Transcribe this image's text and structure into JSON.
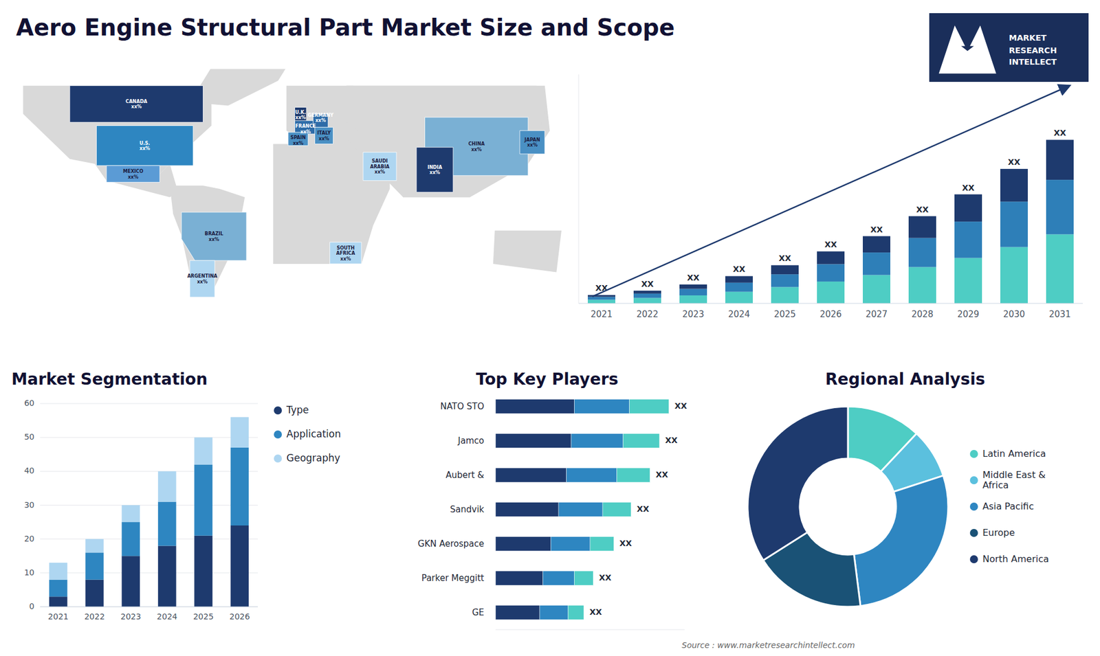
{
  "title": "Aero Engine Structural Part Market Size and Scope",
  "source": "Source : www.marketresearchintellect.com",
  "logo_text": [
    "MARKET",
    "RESEARCH",
    "INTELLECT"
  ],
  "chart_data": [
    {
      "type": "map",
      "xlim": [
        -175,
        155
      ],
      "ylim": [
        -62,
        82
      ],
      "tick_labels": false,
      "land": {
        "color": "#d9d9d9",
        "polygons": [
          [
            [
              -168,
              72
            ],
            [
              -55,
              72
            ],
            [
              -55,
              48
            ],
            [
              -80,
              25
            ],
            [
              -90,
              15
            ],
            [
              -118,
              15
            ],
            [
              -125,
              25
            ],
            [
              -140,
              28
            ],
            [
              -168,
              55
            ]
          ],
          [
            [
              -118,
              15
            ],
            [
              -80,
              5
            ],
            [
              -75,
              8
            ],
            [
              -80,
              25
            ],
            [
              -90,
              15
            ]
          ],
          [
            [
              -80,
              12
            ],
            [
              -78,
              -5
            ],
            [
              -73,
              -18
            ],
            [
              -65,
              -55
            ],
            [
              -56,
              -55
            ],
            [
              -40,
              -22
            ],
            [
              -35,
              5
            ],
            [
              -50,
              10
            ],
            [
              -60,
              12
            ]
          ],
          [
            [
              -10,
              72
            ],
            [
              30,
              72
            ],
            [
              40,
              60
            ],
            [
              30,
              35
            ],
            [
              5,
              35
            ],
            [
              -10,
              45
            ]
          ],
          [
            [
              -18,
              37
            ],
            [
              52,
              37
            ],
            [
              52,
              10
            ],
            [
              42,
              -12
            ],
            [
              35,
              -35
            ],
            [
              -18,
              -35
            ]
          ],
          [
            [
              26,
              72
            ],
            [
              145,
              72
            ],
            [
              148,
              45
            ],
            [
              135,
              25
            ],
            [
              100,
              5
            ],
            [
              60,
              5
            ],
            [
              26,
              40
            ]
          ],
          [
            [
              115,
              -15
            ],
            [
              155,
              -15
            ],
            [
              152,
              -40
            ],
            [
              114,
              -35
            ]
          ],
          [
            [
              -55,
              83
            ],
            [
              -10,
              83
            ],
            [
              -15,
              75
            ],
            [
              -45,
              60
            ],
            [
              -68,
              62
            ]
          ],
          [
            [
              26,
              72
            ],
            [
              60,
              72
            ],
            [
              140,
              72
            ],
            [
              145,
              55
            ],
            [
              135,
              25
            ],
            [
              100,
              5
            ],
            [
              60,
              5
            ],
            [
              40,
              40
            ],
            [
              26,
              50
            ]
          ]
        ]
      },
      "regions": [
        {
          "label": "CANADA\nxx%",
          "color": "#1e3a6e",
          "poly": [
            [
              -140,
              50
            ],
            [
              -60,
              50
            ],
            [
              -60,
              72
            ],
            [
              -140,
              72
            ]
          ]
        },
        {
          "label": "U.S.\nxx%",
          "color": "#2e86c1",
          "poly": [
            [
              -124,
              48
            ],
            [
              -66,
              48
            ],
            [
              -66,
              24
            ],
            [
              -124,
              24
            ]
          ]
        },
        {
          "label": "MEXICO\nxx%",
          "color": "#5b9bd5",
          "poly": [
            [
              -118,
              24
            ],
            [
              -86,
              24
            ],
            [
              -86,
              14
            ],
            [
              -118,
              14
            ]
          ]
        },
        {
          "label": "BRAZIL\nxx%",
          "color": "#7ab0d4",
          "poly": [
            [
              -73,
              -4
            ],
            [
              -34,
              -4
            ],
            [
              -34,
              -33
            ],
            [
              -65,
              -33
            ],
            [
              -73,
              -20
            ]
          ]
        },
        {
          "label": "ARGENTINA\nxx%",
          "color": "#aed6f1",
          "poly": [
            [
              -68,
              -33
            ],
            [
              -53,
              -33
            ],
            [
              -53,
              -55
            ],
            [
              -68,
              -55
            ]
          ]
        },
        {
          "label": "U.K.\nxx%",
          "color": "#1e3a6e",
          "poly": [
            [
              -5,
              50
            ],
            [
              -5,
              59
            ],
            [
              2,
              59
            ],
            [
              2,
              50
            ]
          ]
        },
        {
          "label": "FRANCE\nxx%",
          "color": "#2e6ca8",
          "poly": [
            [
              -5,
              43
            ],
            [
              -5,
              51
            ],
            [
              8,
              51
            ],
            [
              8,
              43
            ]
          ]
        },
        {
          "label": "SPAIN\nxx%",
          "color": "#4a90c4",
          "poly": [
            [
              -9,
              36
            ],
            [
              -9,
              44
            ],
            [
              3,
              44
            ],
            [
              3,
              36
            ]
          ]
        },
        {
          "label": "GERMANY\nxx%",
          "color": "#2e6ca8",
          "poly": [
            [
              6,
              47
            ],
            [
              6,
              55
            ],
            [
              15,
              55
            ],
            [
              15,
              47
            ]
          ]
        },
        {
          "label": "ITALY\nxx%",
          "color": "#4a90c4",
          "poly": [
            [
              7,
              37
            ],
            [
              7,
              47
            ],
            [
              18,
              47
            ],
            [
              18,
              37
            ]
          ]
        },
        {
          "label": "SAUDI\nARABIA\nxx%",
          "color": "#aed6f1",
          "poly": [
            [
              36,
              15
            ],
            [
              36,
              32
            ],
            [
              56,
              32
            ],
            [
              56,
              15
            ]
          ]
        },
        {
          "label": "SOUTH\nAFRICA\nxx%",
          "color": "#aed6f1",
          "poly": [
            [
              16,
              -22
            ],
            [
              35,
              -22
            ],
            [
              35,
              -35
            ],
            [
              16,
              -35
            ]
          ]
        },
        {
          "label": "CHINA\nxx%",
          "color": "#7ab0d4",
          "poly": [
            [
              73,
              18
            ],
            [
              73,
              53
            ],
            [
              135,
              53
            ],
            [
              135,
              18
            ]
          ]
        },
        {
          "label": "INDIA\nxx%",
          "color": "#1e3a6e",
          "poly": [
            [
              68,
              8
            ],
            [
              68,
              35
            ],
            [
              90,
              35
            ],
            [
              90,
              8
            ]
          ]
        },
        {
          "label": "JAPAN\nxx%",
          "color": "#4a90c4",
          "poly": [
            [
              130,
              31
            ],
            [
              130,
              45
            ],
            [
              145,
              45
            ],
            [
              145,
              31
            ]
          ]
        }
      ]
    },
    {
      "type": "bar",
      "stacked": true,
      "categories": [
        "2021",
        "2022",
        "2023",
        "2024",
        "2025",
        "2026",
        "2027",
        "2028",
        "2029",
        "2030",
        "2031"
      ],
      "series": [
        {
          "color": "#4ecdc4",
          "values": [
            1.0,
            1.5,
            2.2,
            3.2,
            4.5,
            6.0,
            7.8,
            10.0,
            12.5,
            15.5,
            19.0
          ]
        },
        {
          "color": "#2e7fb8",
          "values": [
            0.8,
            1.2,
            1.8,
            2.5,
            3.5,
            4.8,
            6.2,
            8.0,
            10.0,
            12.5,
            15.0
          ]
        },
        {
          "color": "#1e3a6e",
          "values": [
            0.5,
            0.8,
            1.2,
            1.8,
            2.5,
            3.5,
            4.5,
            6.0,
            7.5,
            9.0,
            11.0
          ]
        }
      ],
      "ylim": [
        0,
        63
      ],
      "tick_labels": "x",
      "grid": false,
      "total_labels": [
        "XX",
        "XX",
        "XX",
        "XX",
        "XX",
        "XX",
        "XX",
        "XX",
        "XX",
        "XX",
        "XX"
      ],
      "arrow_color": "#1e3a6e"
    },
    {
      "type": "bar",
      "title": "Market Segmentation",
      "stacked": true,
      "categories": [
        "2021",
        "2022",
        "2023",
        "2024",
        "2025",
        "2026"
      ],
      "series": [
        {
          "name": "Type",
          "color": "#1e3a6e",
          "values": [
            3,
            8,
            15,
            18,
            21,
            24
          ]
        },
        {
          "name": "Application",
          "color": "#2e86c1",
          "values": [
            5,
            8,
            10,
            13,
            21,
            23
          ]
        },
        {
          "name": "Geography",
          "color": "#aed6f1",
          "values": [
            5,
            4,
            5,
            9,
            8,
            9
          ]
        }
      ],
      "ylim": [
        0,
        60
      ],
      "yticks": [
        0,
        10,
        20,
        30,
        40,
        50,
        60
      ],
      "grid": true,
      "legend": "right"
    },
    {
      "type": "bar",
      "title": "Top Key Players",
      "orientation": "horizontal",
      "stacked": true,
      "categories": [
        "NATO STO",
        "Jamco",
        "Aubert &",
        "Sandvik",
        "GKN Aerospace",
        "Parker Meggitt",
        "GE"
      ],
      "series": [
        {
          "color": "#1e3a6e",
          "values": [
            5.0,
            4.8,
            4.5,
            4.0,
            3.5,
            3.0,
            2.8
          ]
        },
        {
          "color": "#2e86c1",
          "values": [
            3.5,
            3.3,
            3.2,
            2.8,
            2.5,
            2.0,
            1.8
          ]
        },
        {
          "color": "#4ecdc4",
          "values": [
            2.5,
            2.3,
            2.1,
            1.8,
            1.5,
            1.2,
            1.0
          ]
        }
      ],
      "xlim": [
        0,
        12
      ],
      "tick_labels": "y",
      "total_labels": [
        "XX",
        "XX",
        "XX",
        "XX",
        "XX",
        "XX",
        "XX"
      ]
    },
    {
      "type": "pie",
      "title": "Regional Analysis",
      "categories": [
        "Latin America",
        "Middle East &\nAfrica",
        "Asia Pacific",
        "Europe",
        "North America"
      ],
      "values": [
        12,
        8,
        28,
        18,
        34
      ],
      "colors": [
        "#4ecdc4",
        "#5bc0de",
        "#2e86c1",
        "#1a5276",
        "#1e3a6e"
      ],
      "legend": "right"
    }
  ]
}
